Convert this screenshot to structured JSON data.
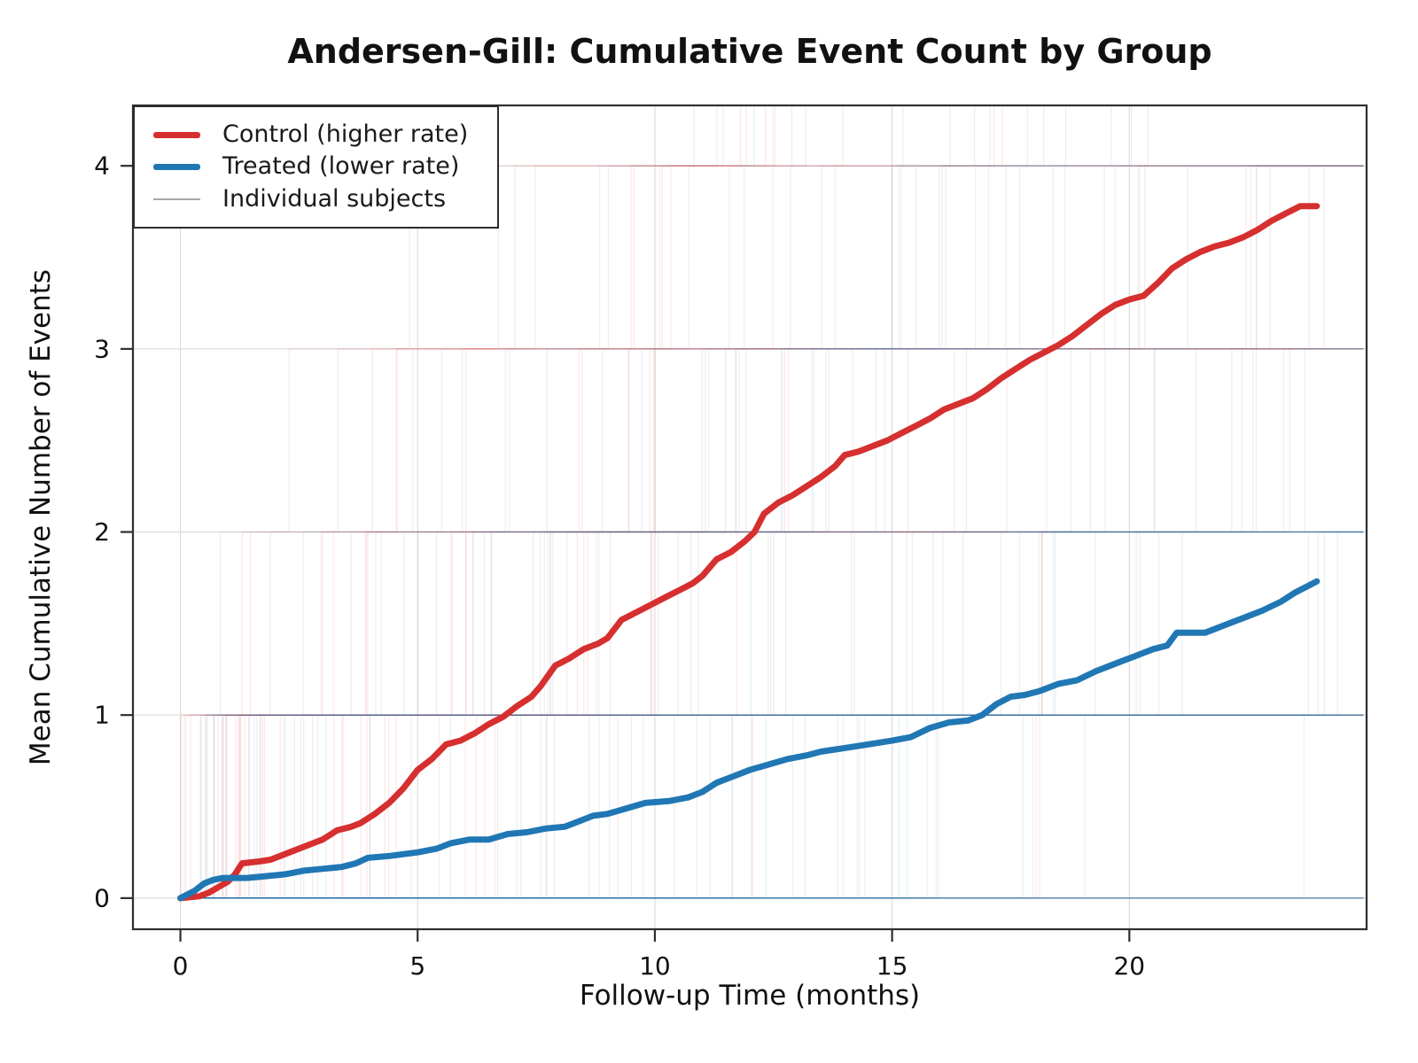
{
  "chart_data": {
    "type": "line",
    "title": "Andersen-Gill: Cumulative Event Count by Group",
    "xlabel": "Follow-up Time (months)",
    "ylabel": "Mean Cumulative Number of Events",
    "xlim": [
      -1,
      25
    ],
    "ylim": [
      -0.17,
      4.33
    ],
    "x_ticks": [
      0,
      5,
      10,
      15,
      20
    ],
    "y_ticks": [
      0,
      1,
      2,
      3,
      4
    ],
    "grid": true,
    "legend_position": "upper left",
    "legend": [
      {
        "label": "Control (higher rate)",
        "color": "#d62f2f",
        "style": "thick"
      },
      {
        "label": "Treated (lower rate)",
        "color": "#2077b4",
        "style": "thick"
      },
      {
        "label": "Individual subjects",
        "color": "#a8a8a8",
        "style": "thin"
      }
    ],
    "background_detail": "faint cumulative step curves of individual subjects in group colors, vertical jumps at event times and horizontal runs at integer counts",
    "series": [
      {
        "name": "Control (higher rate)",
        "color": "#d62f2f",
        "points": [
          [
            0,
            0
          ],
          [
            0.4,
            0.01
          ],
          [
            0.6,
            0.03
          ],
          [
            0.8,
            0.06
          ],
          [
            1,
            0.09
          ],
          [
            1.15,
            0.13
          ],
          [
            1.3,
            0.19
          ],
          [
            1.65,
            0.2
          ],
          [
            1.9,
            0.21
          ],
          [
            2.3,
            0.25
          ],
          [
            2.7,
            0.29
          ],
          [
            3,
            0.32
          ],
          [
            3.3,
            0.37
          ],
          [
            3.6,
            0.39
          ],
          [
            3.8,
            0.41
          ],
          [
            4.1,
            0.46
          ],
          [
            4.4,
            0.52
          ],
          [
            4.7,
            0.6
          ],
          [
            5,
            0.7
          ],
          [
            5.3,
            0.76
          ],
          [
            5.6,
            0.84
          ],
          [
            5.9,
            0.86
          ],
          [
            6.2,
            0.9
          ],
          [
            6.5,
            0.95
          ],
          [
            6.8,
            0.99
          ],
          [
            7.1,
            1.05
          ],
          [
            7.4,
            1.1
          ],
          [
            7.6,
            1.16
          ],
          [
            7.9,
            1.27
          ],
          [
            8.2,
            1.31
          ],
          [
            8.5,
            1.36
          ],
          [
            8.8,
            1.39
          ],
          [
            9,
            1.42
          ],
          [
            9.3,
            1.52
          ],
          [
            9.6,
            1.56
          ],
          [
            9.9,
            1.6
          ],
          [
            10.2,
            1.64
          ],
          [
            10.5,
            1.68
          ],
          [
            10.8,
            1.72
          ],
          [
            11,
            1.76
          ],
          [
            11.3,
            1.85
          ],
          [
            11.6,
            1.89
          ],
          [
            11.9,
            1.95
          ],
          [
            12.1,
            2
          ],
          [
            12.3,
            2.1
          ],
          [
            12.6,
            2.16
          ],
          [
            12.9,
            2.2
          ],
          [
            13.2,
            2.25
          ],
          [
            13.5,
            2.3
          ],
          [
            13.8,
            2.36
          ],
          [
            14,
            2.42
          ],
          [
            14.3,
            2.44
          ],
          [
            14.6,
            2.47
          ],
          [
            14.9,
            2.5
          ],
          [
            15.2,
            2.54
          ],
          [
            15.5,
            2.58
          ],
          [
            15.8,
            2.62
          ],
          [
            16.1,
            2.67
          ],
          [
            16.4,
            2.7
          ],
          [
            16.7,
            2.73
          ],
          [
            17,
            2.78
          ],
          [
            17.3,
            2.84
          ],
          [
            17.6,
            2.89
          ],
          [
            17.9,
            2.94
          ],
          [
            18.2,
            2.98
          ],
          [
            18.5,
            3.02
          ],
          [
            18.8,
            3.07
          ],
          [
            19.1,
            3.13
          ],
          [
            19.4,
            3.19
          ],
          [
            19.7,
            3.24
          ],
          [
            20,
            3.27
          ],
          [
            20.3,
            3.29
          ],
          [
            20.6,
            3.36
          ],
          [
            20.9,
            3.44
          ],
          [
            21.2,
            3.49
          ],
          [
            21.5,
            3.53
          ],
          [
            21.8,
            3.56
          ],
          [
            22.1,
            3.58
          ],
          [
            22.4,
            3.61
          ],
          [
            22.7,
            3.65
          ],
          [
            23,
            3.7
          ],
          [
            23.3,
            3.74
          ],
          [
            23.6,
            3.78
          ],
          [
            23.95,
            3.78
          ]
        ]
      },
      {
        "name": "Treated (lower rate)",
        "color": "#2077b4",
        "points": [
          [
            0,
            0
          ],
          [
            0.3,
            0.04
          ],
          [
            0.5,
            0.08
          ],
          [
            0.7,
            0.1
          ],
          [
            0.9,
            0.11
          ],
          [
            1.4,
            0.11
          ],
          [
            1.8,
            0.12
          ],
          [
            2.2,
            0.13
          ],
          [
            2.6,
            0.15
          ],
          [
            3,
            0.16
          ],
          [
            3.4,
            0.17
          ],
          [
            3.7,
            0.19
          ],
          [
            3.95,
            0.22
          ],
          [
            4.4,
            0.23
          ],
          [
            5,
            0.25
          ],
          [
            5.4,
            0.27
          ],
          [
            5.7,
            0.3
          ],
          [
            6.1,
            0.32
          ],
          [
            6.5,
            0.32
          ],
          [
            6.9,
            0.35
          ],
          [
            7.3,
            0.36
          ],
          [
            7.7,
            0.38
          ],
          [
            8.1,
            0.39
          ],
          [
            8.4,
            0.42
          ],
          [
            8.7,
            0.45
          ],
          [
            9,
            0.46
          ],
          [
            9.4,
            0.49
          ],
          [
            9.8,
            0.52
          ],
          [
            10.3,
            0.53
          ],
          [
            10.7,
            0.55
          ],
          [
            11,
            0.58
          ],
          [
            11.3,
            0.63
          ],
          [
            11.6,
            0.66
          ],
          [
            12,
            0.7
          ],
          [
            12.4,
            0.73
          ],
          [
            12.8,
            0.76
          ],
          [
            13.2,
            0.78
          ],
          [
            13.5,
            0.8
          ],
          [
            14,
            0.82
          ],
          [
            14.5,
            0.84
          ],
          [
            15,
            0.86
          ],
          [
            15.4,
            0.88
          ],
          [
            15.8,
            0.93
          ],
          [
            16.2,
            0.96
          ],
          [
            16.6,
            0.97
          ],
          [
            16.9,
            1
          ],
          [
            17.2,
            1.06
          ],
          [
            17.5,
            1.1
          ],
          [
            17.8,
            1.11
          ],
          [
            18.1,
            1.13
          ],
          [
            18.5,
            1.17
          ],
          [
            18.9,
            1.19
          ],
          [
            19.3,
            1.24
          ],
          [
            19.7,
            1.28
          ],
          [
            20.1,
            1.32
          ],
          [
            20.5,
            1.36
          ],
          [
            20.8,
            1.38
          ],
          [
            21,
            1.45
          ],
          [
            21.6,
            1.45
          ],
          [
            22,
            1.49
          ],
          [
            22.4,
            1.53
          ],
          [
            22.8,
            1.57
          ],
          [
            23.2,
            1.62
          ],
          [
            23.5,
            1.67
          ],
          [
            23.8,
            1.71
          ],
          [
            23.95,
            1.73
          ]
        ]
      }
    ]
  }
}
